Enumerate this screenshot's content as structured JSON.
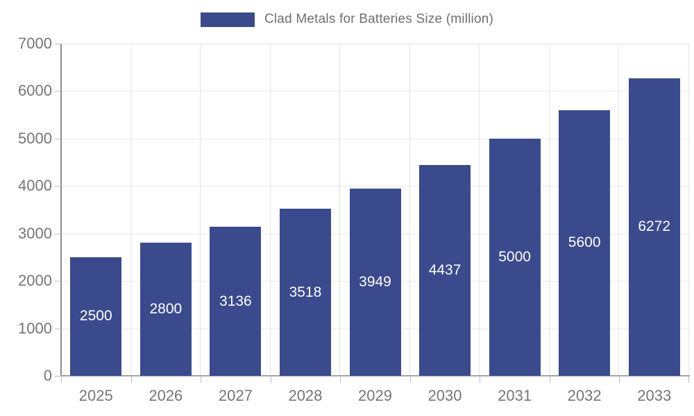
{
  "legend": {
    "label": "Clad Metals for Batteries Size (million)"
  },
  "colors": {
    "bar": "#3a4a8c",
    "grid": "#e6e6e6",
    "y_axis_line": "#8c8c8c",
    "x_axis_line": "#a3a3a3",
    "tick_mark": "#bdbdbd",
    "tick_text": "#757575",
    "legend_text": "#6f6f6f",
    "value_label_text": "#ffffff",
    "background": "#ffffff"
  },
  "chart_data": {
    "type": "bar",
    "title": "Clad Metals for Batteries Size (million)",
    "categories": [
      "2025",
      "2026",
      "2027",
      "2028",
      "2029",
      "2030",
      "2031",
      "2032",
      "2033"
    ],
    "values": [
      2500,
      2800,
      3136,
      3518,
      3949,
      4437,
      5000,
      5600,
      6272
    ],
    "xlabel": "",
    "ylabel": "",
    "ylim": [
      0,
      7000
    ],
    "yticks": [
      0,
      1000,
      2000,
      3000,
      4000,
      5000,
      6000,
      7000
    ],
    "grid": true,
    "legend_position": "top-center",
    "value_labels_position": "inside-center"
  }
}
